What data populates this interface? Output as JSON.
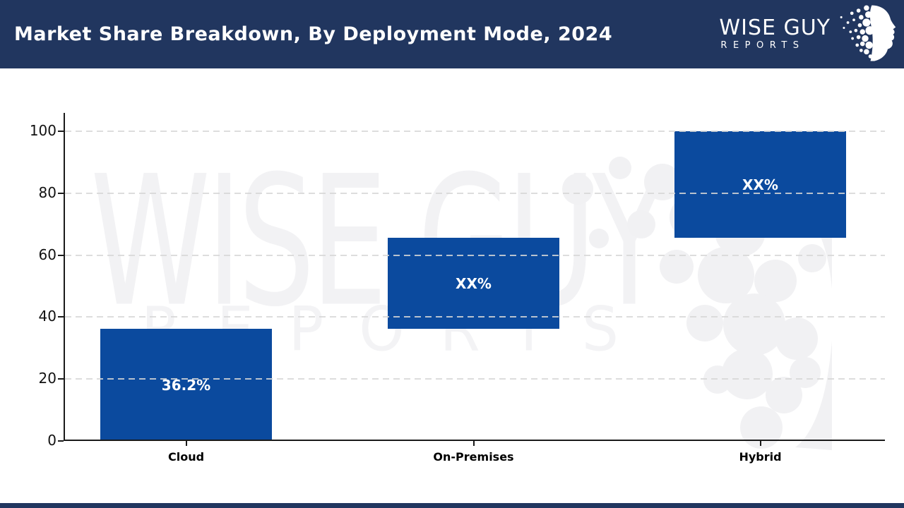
{
  "header": {
    "title": "Market Share Breakdown, By Deployment Mode, 2024",
    "logo": {
      "line1": "WISE GUY",
      "line2": "REPORTS"
    }
  },
  "watermark": {
    "line1": "WISE GUY",
    "line2": "REPORTS"
  },
  "chart_data": {
    "type": "bar",
    "subtype": "waterfall",
    "title": "Market Share Breakdown, By Deployment Mode, 2024",
    "categories": [
      "Cloud",
      "On-Premises",
      "Hybrid"
    ],
    "series": [
      {
        "name": "Market share (%)",
        "segments": [
          {
            "category": "Cloud",
            "start": 0,
            "end": 36.2,
            "value": 36.2,
            "label": "36.2%"
          },
          {
            "category": "On-Premises",
            "start": 36.2,
            "end": 65.5,
            "value": 29.3,
            "label": "XX%"
          },
          {
            "category": "Hybrid",
            "start": 65.5,
            "end": 100,
            "value": 34.5,
            "label": "XX%"
          }
        ]
      }
    ],
    "xlabel": "",
    "ylabel": "",
    "ylim": [
      0,
      100
    ],
    "yticks": [
      0,
      20,
      40,
      60,
      80,
      100
    ],
    "grid": "horizontal-dashed",
    "legend": "none",
    "colors": {
      "bar": "#0b4a9e",
      "bar_label": "#ffffff",
      "axis": "#1a1a1a",
      "grid": "#dcdcdc",
      "header_bg": "#21365f",
      "header_text": "#ffffff",
      "footer_bg": "#21365f"
    }
  }
}
